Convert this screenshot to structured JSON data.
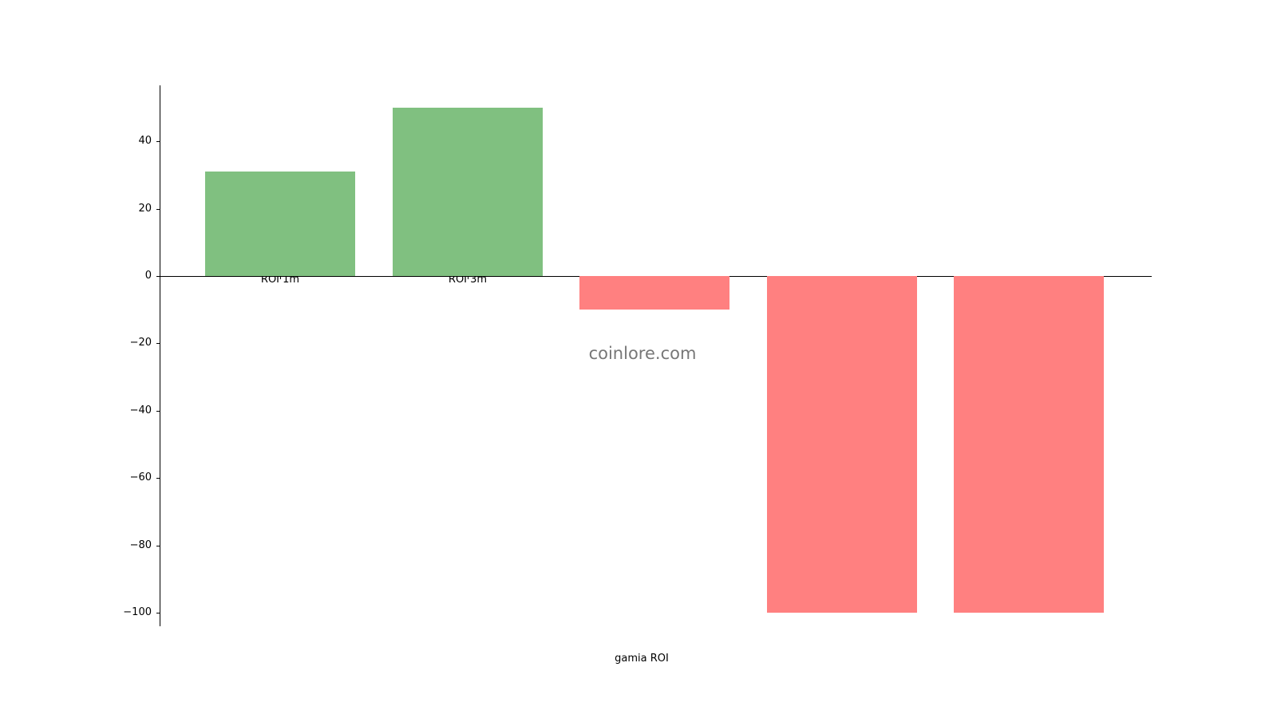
{
  "page": {
    "background_color": "#ffffff"
  },
  "watermark": {
    "text": "coinlore.com",
    "color": "#777777"
  },
  "chart_data": {
    "type": "bar",
    "title": "",
    "xlabel": "gamia ROI",
    "ylabel": "",
    "categories": [
      "ROI 1m",
      "ROI 3m",
      "",
      "",
      ""
    ],
    "values": [
      31,
      50,
      -10,
      -100,
      -100
    ],
    "bars": [
      {
        "label": "ROI 1m",
        "label_visible": true,
        "value": 31,
        "color": "#80C080"
      },
      {
        "label": "ROI 3m",
        "label_visible": true,
        "value": 50,
        "color": "#80C080"
      },
      {
        "label": "",
        "label_visible": false,
        "value": -10,
        "color": "#FF8080"
      },
      {
        "label": "",
        "label_visible": false,
        "value": -100,
        "color": "#FF8080"
      },
      {
        "label": "",
        "label_visible": false,
        "value": -100,
        "color": "#FF8080"
      }
    ],
    "ylim": [
      -104,
      56.6
    ],
    "yticks": [
      {
        "value": 40,
        "label": "40"
      },
      {
        "value": 20,
        "label": "20"
      },
      {
        "value": 0,
        "label": "0"
      },
      {
        "value": -20,
        "label": "−20"
      },
      {
        "value": -40,
        "label": "−40"
      },
      {
        "value": -60,
        "label": "−60"
      },
      {
        "value": -80,
        "label": "−80"
      },
      {
        "value": -100,
        "label": "−100"
      }
    ],
    "colors": {
      "positive": "#80C080",
      "negative": "#FF8080",
      "axis": "#000000"
    },
    "grid": false,
    "legend_position": "none"
  }
}
